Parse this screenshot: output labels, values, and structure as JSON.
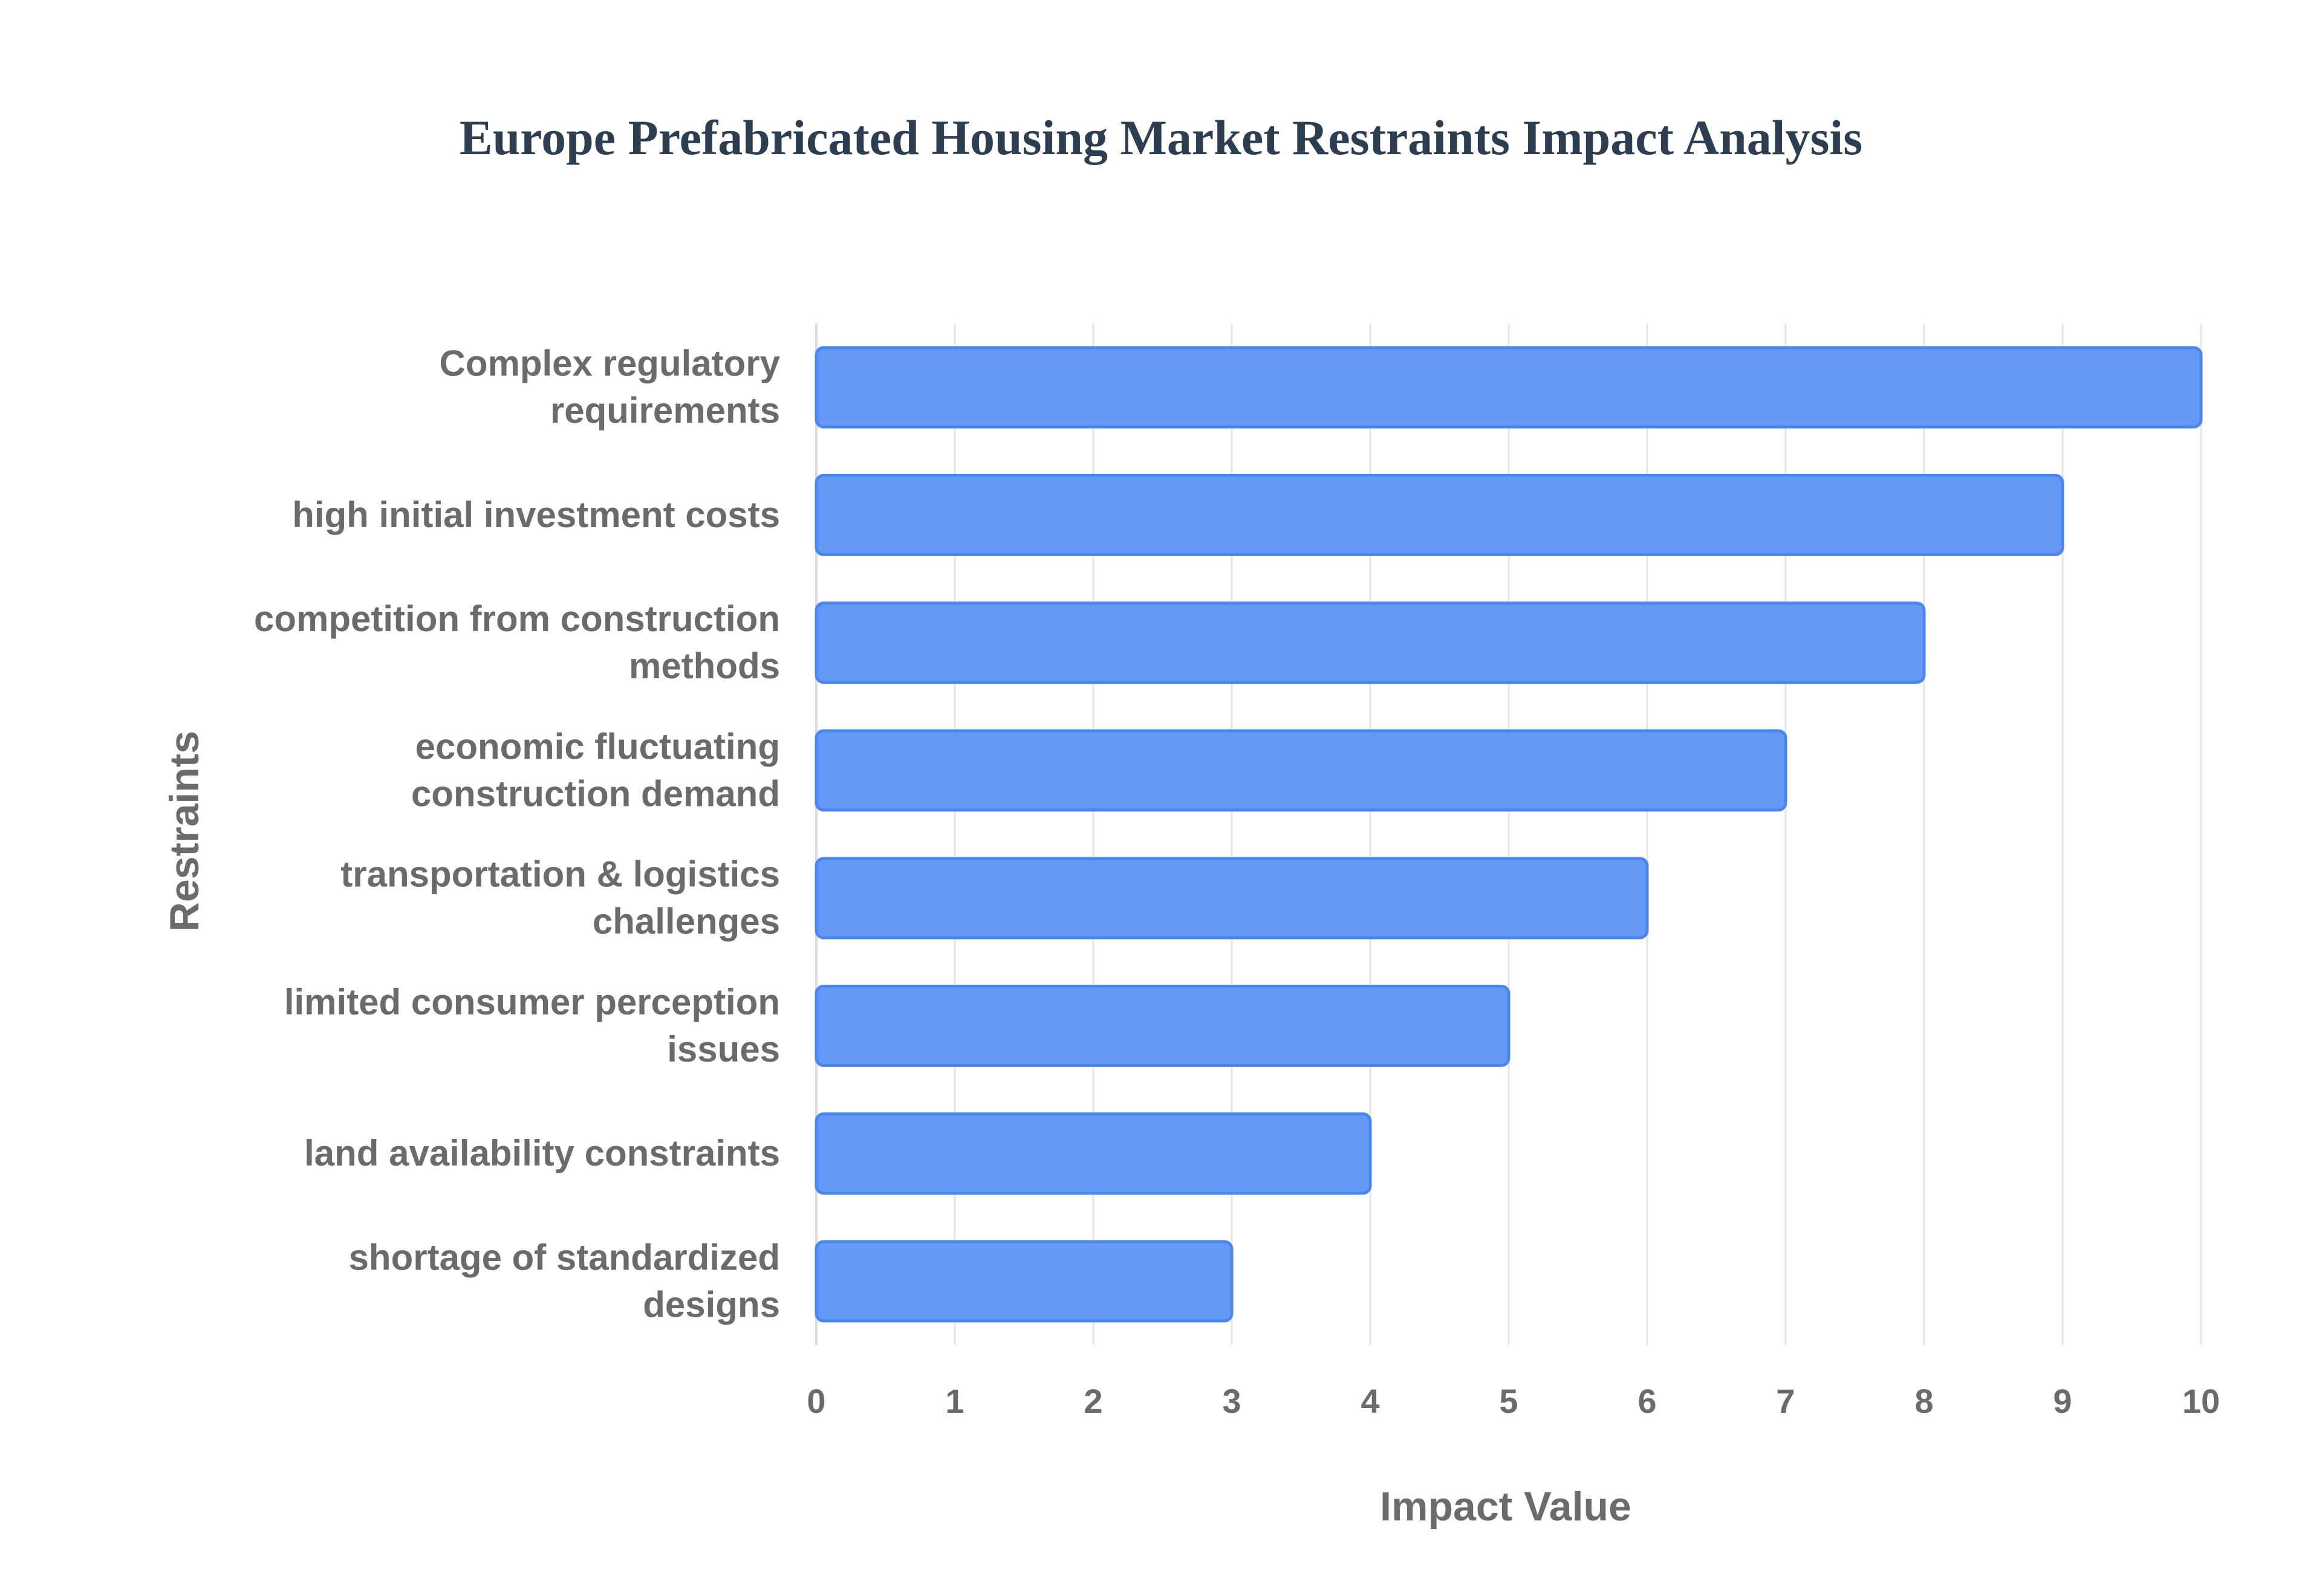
{
  "chart_data": {
    "type": "bar",
    "orientation": "horizontal",
    "title": "Europe Prefabricated Housing Market Restraints Impact Analysis",
    "xlabel": "Impact Value",
    "ylabel": "Restraints",
    "xlim": [
      0,
      10
    ],
    "x_ticks": [
      "0",
      "1",
      "2",
      "3",
      "4",
      "5",
      "6",
      "7",
      "8",
      "9",
      "10"
    ],
    "grid": true,
    "bar_color": "#6499f5",
    "bar_border_color": "#4a86ee",
    "categories": [
      [
        "Complex regulatory",
        "requirements"
      ],
      [
        "high initial investment costs"
      ],
      [
        "competition from construction",
        "methods"
      ],
      [
        "economic fluctuating",
        "construction demand"
      ],
      [
        "transportation & logistics",
        "challenges"
      ],
      [
        "limited consumer perception",
        "issues"
      ],
      [
        "land availability constraints"
      ],
      [
        "shortage of standardized",
        "designs"
      ]
    ],
    "values": [
      10,
      9,
      8,
      7,
      6,
      5,
      4,
      3
    ]
  }
}
